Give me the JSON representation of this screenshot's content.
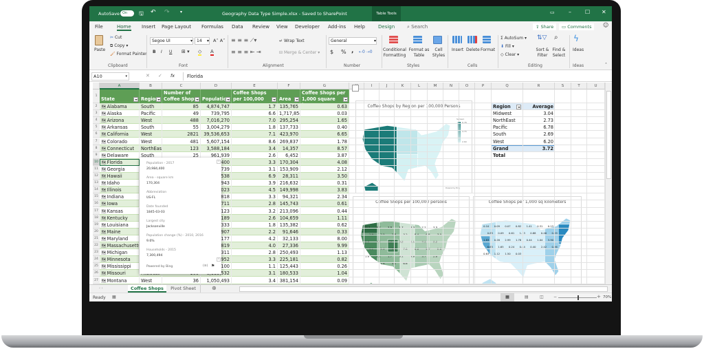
{
  "titlebar": {
    "autosave": "AutoSave",
    "toggle": "On",
    "doc_title": "Geography Data Type Simple.xlsx - Saved to SharePoint",
    "context_tab": "Table Tools"
  },
  "tabs": [
    "File",
    "Home",
    "Insert",
    "Page Layout",
    "Formulas",
    "Data",
    "Review",
    "View",
    "Developer",
    "Add-ins",
    "Help",
    "Design"
  ],
  "search": "Search",
  "share": "Share",
  "comments": "Comments",
  "ribbon": {
    "clipboard": {
      "paste": "Paste",
      "cut": "Cut",
      "copy": "Copy",
      "format_painter": "Format Painter",
      "label": "Clipboard"
    },
    "font": {
      "name": "Segoe UI",
      "size": "14",
      "bold": "B",
      "italic": "I",
      "underline": "U",
      "label": "Font"
    },
    "alignment": {
      "wrap": "Wrap Text",
      "merge": "Merge & Center",
      "label": "Alignment"
    },
    "number": {
      "format": "General",
      "currency": "$",
      "percent": "%",
      "comma": ",",
      "label": "Number"
    },
    "styles": {
      "conditional": "Conditional Formatting",
      "format_table": "Format as Table",
      "cell_styles": "Cell Styles",
      "label": "Styles"
    },
    "cells": {
      "insert": "Insert",
      "delete": "Delete",
      "format": "Format",
      "label": "Cells"
    },
    "editing": {
      "autosum": "AutoSum",
      "fill": "Fill",
      "clear": "Clear",
      "sort": "Sort & Filter",
      "find": "Find & Select",
      "label": "Editing"
    },
    "ideas": {
      "ideas": "Ideas",
      "label": "Ideas"
    }
  },
  "formula": {
    "namebox": "A10",
    "fx": "fx",
    "value": "Florida"
  },
  "columns": [
    "A",
    "B",
    "C",
    "D",
    "E",
    "F",
    "G",
    "H",
    "I",
    "J",
    "K",
    "L",
    "M",
    "N",
    "O",
    "P",
    "Q",
    "R",
    "S",
    "T",
    "U"
  ],
  "table": {
    "headers": [
      "State",
      "Region",
      "Number of Coffee Shops",
      "Population",
      "Coffee Shops per 100,000 persons",
      "Area",
      "Coffee Shops per 1,000 square kms"
    ],
    "rows": [
      [
        "Alabama",
        "South",
        "85",
        "4,874,747",
        "1.7",
        "135,765",
        "0.63"
      ],
      [
        "Alaska",
        "Pacific",
        "49",
        "739,795",
        "6.6",
        "1,717,854",
        "0.03"
      ],
      [
        "Arizona",
        "West",
        "488",
        "7,016,270",
        "7.0",
        "295,254",
        "1.65"
      ],
      [
        "Arkansas",
        "South",
        "55",
        "3,004,279",
        "1.8",
        "137,733",
        "0.40"
      ],
      [
        "California",
        "West",
        "2821",
        "39,536,653",
        "7.1",
        "423,970",
        "6.65"
      ],
      [
        "Colorado",
        "West",
        "481",
        "5,607,154",
        "8.6",
        "269,837",
        "1.78"
      ],
      [
        "Connecticut",
        "NorthEast",
        "123",
        "3,588,184",
        "3.4",
        "14,357",
        "8.57"
      ],
      [
        "Delaware",
        "South",
        "25",
        "961,939",
        "2.6",
        "6,452",
        "3.87"
      ],
      [
        "Florida",
        "",
        "",
        "400",
        "3.3",
        "170,304",
        "4.08"
      ],
      [
        "Georgia",
        "",
        "",
        "739",
        "3.1",
        "153,909",
        "2.12"
      ],
      [
        "Hawaii",
        "",
        "",
        "538",
        "6.9",
        "28,311",
        "3.50"
      ],
      [
        "Idaho",
        "",
        "",
        "943",
        "3.9",
        "216,632",
        "0.31"
      ],
      [
        "Illinois",
        "",
        "",
        "023",
        "4.5",
        "149,998",
        "3.83"
      ],
      [
        "Indiana",
        "",
        "",
        "818",
        "3.3",
        "94,321",
        "2.34"
      ],
      [
        "Iowa",
        "",
        "",
        "711",
        "2.8",
        "145,743",
        "0.61"
      ],
      [
        "Kansas",
        "",
        "",
        "123",
        "3.2",
        "213,096",
        "0.44"
      ],
      [
        "Kentucky",
        "",
        "",
        "189",
        "2.6",
        "104,659",
        "1.11"
      ],
      [
        "Louisiana",
        "",
        "",
        "333",
        "1.8",
        "135,382",
        "0.62"
      ],
      [
        "Maine",
        "",
        "",
        "907",
        "2.2",
        "91,646",
        "0.33"
      ],
      [
        "Maryland",
        "",
        "",
        "177",
        "4.2",
        "32,133",
        "8.00"
      ],
      [
        "Massachusetts",
        "",
        "",
        "819",
        "4.0",
        "27,336",
        "9.99"
      ],
      [
        "Michigan",
        "",
        "",
        "311",
        "2.8",
        "250,493",
        "1.13"
      ],
      [
        "Minnesota",
        "",
        "",
        "952",
        "3.3",
        "225,181",
        "0.82"
      ],
      [
        "Mississippi",
        "",
        "",
        "100",
        "1.1",
        "125,443",
        "0.26"
      ],
      [
        "Missouri",
        "Midwest",
        "100",
        "6,113,532",
        "3.1",
        "180,533",
        "1.04"
      ],
      [
        "Montana",
        "West",
        "36",
        "1,050,493",
        "3.4",
        "381,154",
        "0.09"
      ]
    ]
  },
  "card": {
    "fields": [
      {
        "label": "Population - 2017",
        "value": "20,984,400"
      },
      {
        "label": "Area - square km",
        "value": "170,304"
      },
      {
        "label": "Abbreviation",
        "value": "US-FL"
      },
      {
        "label": "Date founded",
        "value": "1845-03-03"
      },
      {
        "label": "Largest city",
        "value": "Jacksonville"
      },
      {
        "label": "Population change (%) - 2010, 2016",
        "value": "9.6%"
      },
      {
        "label": "Households - 2015",
        "value": "7,300,494"
      }
    ],
    "footer": "Powered by Bing"
  },
  "pivot": {
    "header_region": "Region",
    "header_value": "Average",
    "rows": [
      [
        "Midwest",
        "3.04"
      ],
      [
        "NorthEast",
        "2.73"
      ],
      [
        "Pacific",
        "6.78"
      ],
      [
        "South",
        "2.69"
      ],
      [
        "West",
        "6.20"
      ]
    ],
    "total": [
      "Grand Total",
      "3.72"
    ]
  },
  "chart_data": [
    {
      "type": "map",
      "title": "Coffee Shops by Region per 100,000 Persons",
      "legend_title": "Series1",
      "legend_ticks": [
        "6.78",
        "4.74",
        "2.69"
      ],
      "colors": {
        "high": "#1b7b78",
        "low": "#d3f1f3"
      },
      "attribution": "Powered by Bing"
    },
    {
      "type": "map",
      "title": "Coffee Shops per 100,000 persons",
      "labels": [
        "10.7",
        "8.7",
        "3.6",
        "1.7",
        "3.3",
        "2.2",
        "3.9",
        "2.9",
        "2.5",
        "2.8",
        "3.2",
        "8.4",
        "6.8",
        "3.0",
        "2.8",
        "4.5",
        "3.3",
        "3.2",
        "5.1",
        "7.1",
        "3.2",
        "3.1",
        "2.6",
        "3.3",
        "7.0",
        "8.6",
        "2.7",
        "2.0",
        "1.8",
        "1.1",
        "1.7",
        "3.1",
        "3.6",
        "3.7",
        "2.6",
        "1.8",
        "3.1",
        "6.6"
      ],
      "colors": {
        "high": "#2f7a4a",
        "low": "#e3efe6"
      }
    },
    {
      "type": "map",
      "title": "Coffee Shops per 1,000 sq kilometers",
      "labels": [
        "0.10",
        "0.09",
        "0.07",
        "0.82",
        "1.41",
        "0.31",
        "0.13",
        "0.85",
        "0.09",
        "0.61",
        "1.13",
        "0.88",
        "0.46",
        "0.29",
        "1.83",
        "0.26",
        "2.99",
        "1.78",
        "0.44",
        "1.04",
        "3.90",
        "6.65",
        "1.65",
        "0.24",
        "0.44",
        "0.40",
        "2.42",
        "0.26",
        "0.63",
        "1.12",
        "1.50",
        "0.03"
      ],
      "colors": {
        "high": "#2a8ac0",
        "low": "#e0f3fb"
      }
    }
  ],
  "sheets": [
    "Coffee Shops",
    "Pivot Sheet"
  ],
  "status": {
    "ready": "Ready",
    "zoom": "70%",
    "zoom_level": 70
  }
}
